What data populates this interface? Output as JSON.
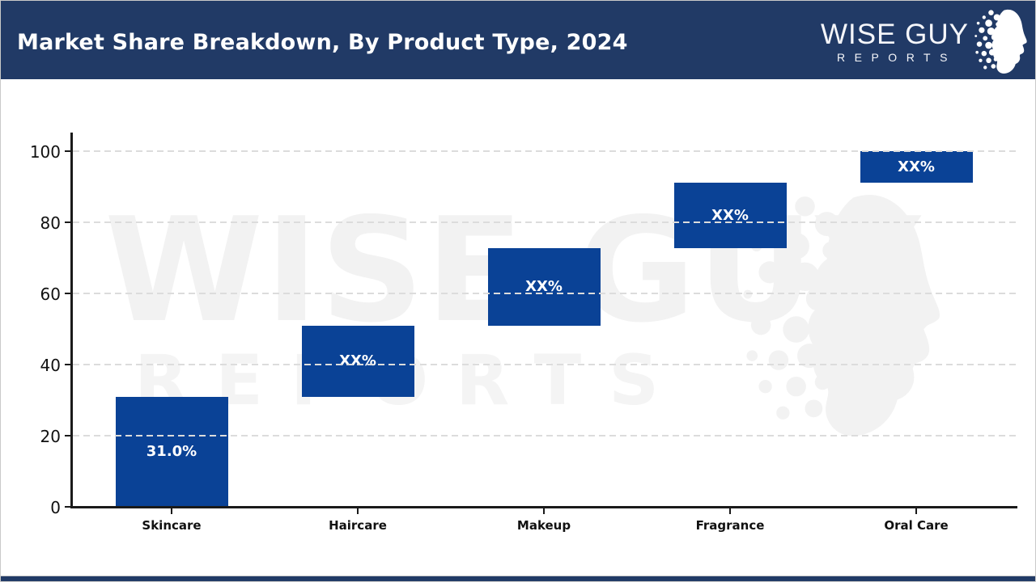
{
  "header": {
    "title": "Market Share Breakdown, By Product Type, 2024",
    "logo": {
      "line1": "WISE GUY",
      "line2": "REPORTS"
    }
  },
  "watermark": {
    "line1": "WISE GUY",
    "line2": "REPORTS"
  },
  "colors": {
    "header_bg": "#213a66",
    "footer_bg": "#213a66",
    "bar": "#0a4296",
    "bar_label": "#ffffff",
    "grid": "#dcdcdc",
    "axis": "#1a1a1a",
    "watermark": "#f2f2f2"
  },
  "chart_data": {
    "type": "bar",
    "subtype": "waterfall",
    "title": "Market Share Breakdown, By Product Type, 2024",
    "categories": [
      "Skincare",
      "Haircare",
      "Makeup",
      "Fragrance",
      "Oral Care"
    ],
    "series": [
      {
        "name": "Market share (%)",
        "values": [
          31.0,
          20.0,
          21.7,
          18.4,
          8.9
        ],
        "starts": [
          0,
          31.0,
          51.0,
          72.7,
          91.1
        ],
        "ends": [
          31.0,
          51.0,
          72.7,
          91.1,
          100.0
        ]
      }
    ],
    "bar_labels": [
      "31.0%",
      "XX%",
      "XX%",
      "XX%",
      "XX%"
    ],
    "xlabel": "",
    "ylabel": "",
    "yticks": [
      0,
      20,
      40,
      60,
      80,
      100
    ],
    "ylim": [
      0,
      105
    ],
    "grid": "horizontal-dashed",
    "legend": "none"
  },
  "footer": {}
}
